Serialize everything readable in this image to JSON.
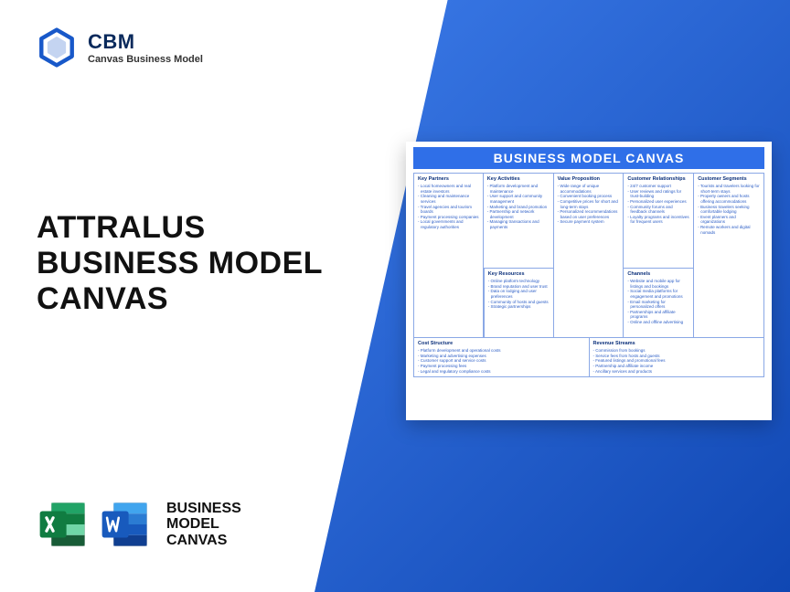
{
  "header": {
    "logo_color": "#1858c9",
    "title": "CBM",
    "subtitle": "Canvas Business Model"
  },
  "main_title": {
    "line1": "ATTRALUS",
    "line2": "BUSINESS MODEL",
    "line3": "CANVAS"
  },
  "footer": {
    "excel_color_dark": "#107c41",
    "excel_color_light": "#21a366",
    "word_color_dark": "#185abd",
    "word_color_light": "#41a5ee",
    "line1": "BUSINESS",
    "line2": "MODEL",
    "line3": "CANVAS"
  },
  "canvas": {
    "title": "BUSINESS MODEL CANVAS",
    "header_bg": "#2f6fe8",
    "border_color": "#8aa8e6",
    "heading_color": "#0a2f7a",
    "item_color": "#2a5cc5",
    "sections": {
      "key_partners": {
        "title": "Key Partners",
        "items": [
          "Local homeowners and real estate investors",
          "Cleaning and maintenance services",
          "Travel agencies and tourism boards",
          "Payment processing companies",
          "Local governments and regulatory authorities"
        ]
      },
      "key_activities": {
        "title": "Key Activities",
        "items": [
          "Platform development and maintenance",
          "User support and community management",
          "Marketing and brand promotion",
          "Partnership and network development",
          "Managing transactions and payments"
        ]
      },
      "key_resources": {
        "title": "Key Resources",
        "items": [
          "Online platform technology",
          "Brand reputation and user trust",
          "Data on lodging and user preferences",
          "Community of hosts and guests",
          "Strategic partnerships"
        ]
      },
      "value_proposition": {
        "title": "Value Proposition",
        "items": [
          "Wide range of unique accommodations",
          "Convenient booking process",
          "Competitive prices for short and long-term stays",
          "Personalized recommendations based on user preferences",
          "Secure payment system"
        ]
      },
      "customer_relationships": {
        "title": "Customer Relationships",
        "items": [
          "24/7 customer support",
          "User reviews and ratings for trust-building",
          "Personalized user experiences",
          "Community forums and feedback channels",
          "Loyalty programs and incentives for frequent users"
        ]
      },
      "channels": {
        "title": "Channels",
        "items": [
          "Website and mobile app for listings and bookings",
          "Social media platforms for engagement and promotions",
          "Email marketing for personalized offers",
          "Partnerships and affiliate programs",
          "Online and offline advertising"
        ]
      },
      "customer_segments": {
        "title": "Customer Segments",
        "items": [
          "Tourists and travelers looking for short-term stays",
          "Property owners and hosts offering accommodations",
          "Business travelers seeking comfortable lodging",
          "Event planners and organizations",
          "Remote workers and digital nomads"
        ]
      },
      "cost_structure": {
        "title": "Cost Structure",
        "items": [
          "Platform development and operational costs",
          "Marketing and advertising expenses",
          "Customer support and service costs",
          "Payment processing fees",
          "Legal and regulatory compliance costs"
        ]
      },
      "revenue_streams": {
        "title": "Revenue Streams",
        "items": [
          "Commission from bookings",
          "Service fees from hosts and guests",
          "Featured listings and promotional fees",
          "Partnership and affiliate income",
          "Ancillary services and products"
        ]
      }
    }
  }
}
